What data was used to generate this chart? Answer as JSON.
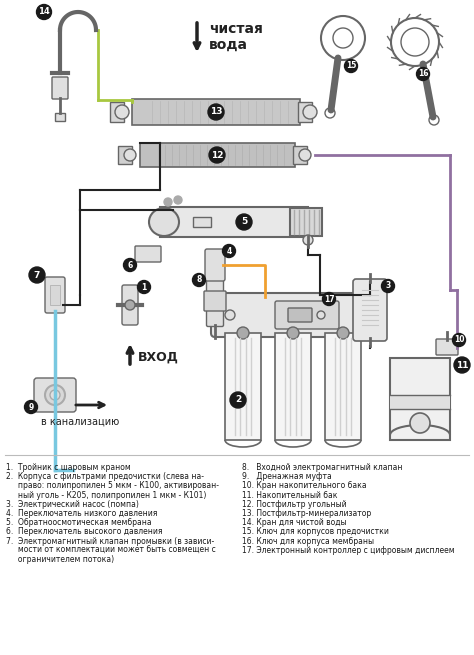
{
  "bg_color": "#ffffff",
  "чистая_вода": "чистая\nвода",
  "вход": "ВХОД",
  "канализация": "в канализацию",
  "color_green": "#a8c840",
  "color_blue": "#78c8e0",
  "color_purple": "#9070a0",
  "color_orange": "#f0a030",
  "color_dark": "#222222",
  "color_mid": "#666666",
  "color_light": "#e0e0e0",
  "color_mid2": "#aaaaaa",
  "left_legend": [
    "1.  Тройник с шаровым краном",
    "2.  Корпуса с фильтрами предочистки (слева на-",
    "     право: полипропилен 5 мкм - К100, активирован-",
    "     ный уголь - К205, полипропилен 1 мкм - К101)",
    "3.  Электрический насос (помпа)",
    "4.  Переключатель низкого давления",
    "5.  Обратноосмотическая мембрана",
    "6.  Переключатель высокого давления",
    "7.  Электромагнитный клапан промывки (в зависи-",
    "     мости от комплектации может быть совмещен с",
    "     ограничителем потока)"
  ],
  "right_legend": [
    "8.   Входной электромагнитный клапан",
    "9.   Дренажная муфта",
    "10. Кран накопительного бака",
    "11. Накопительный бак",
    "12. Постфильтр угольный",
    "13. Постфильтр-минерализатор",
    "14. Кран для чистой воды",
    "15. Ключ для корпусов предочистки",
    "16. Ключ для корпуса мембраны",
    "17. Электронный контроллер с цифровым дисплеем"
  ]
}
